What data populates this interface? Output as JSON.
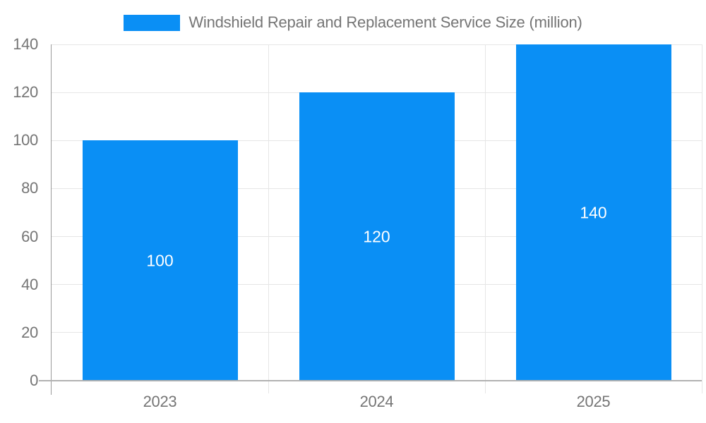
{
  "chart_data": {
    "type": "bar",
    "title": "",
    "categories": [
      "2023",
      "2024",
      "2025"
    ],
    "series": [
      {
        "name": "Windshield Repair and Replacement Service Size (million)",
        "values": [
          100,
          120,
          140
        ]
      }
    ],
    "bar_value_labels": [
      "100",
      "120",
      "140"
    ],
    "xlabel": "",
    "ylabel": "",
    "ylim": [
      0,
      140
    ],
    "yticks": [
      0,
      20,
      40,
      60,
      80,
      100,
      120,
      140
    ],
    "grid": true,
    "legend_position": "top-center",
    "colors": {
      "bar": "#0a8ff5",
      "bar_label": "#ffffff",
      "axis_text": "#757575",
      "legend_text": "#757575",
      "gridline": "#e6e6e6",
      "baseline": "#b1b1b1",
      "axis_line": "#9a9a9a",
      "background": "#ffffff"
    }
  }
}
